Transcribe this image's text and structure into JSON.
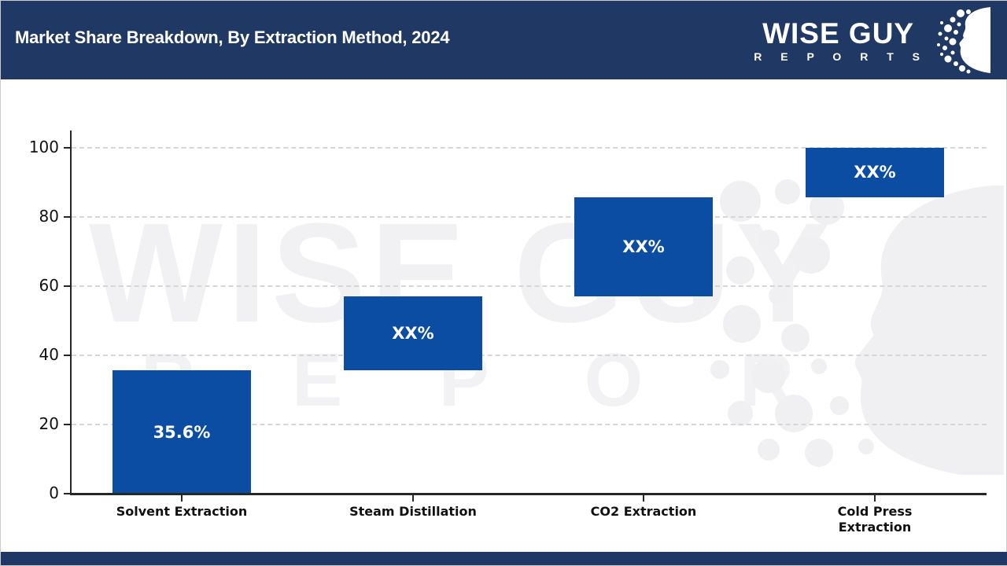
{
  "colors": {
    "header_bg": "#203864",
    "footer_bg": "#203864",
    "bar": "#0b4da2",
    "grid": "#d6d6d6",
    "axis": "#262626",
    "watermark": "#f1f1f3"
  },
  "header": {
    "title": "Market Share Breakdown, By Extraction Method, 2024",
    "logo_line1": "WISE GUY",
    "logo_line2": "R E P O R T S"
  },
  "watermark": {
    "line1": "WISE GUY",
    "line2": "R E P O R T S"
  },
  "chart_data": {
    "type": "bar",
    "variant": "waterfall",
    "title": "Market Share Breakdown, By Extraction Method, 2024",
    "xlabel": "",
    "ylabel": "",
    "ylim": [
      0,
      105
    ],
    "grid": "dashed-horizontal",
    "legend": "none",
    "bar_color": "#0b4da2",
    "yticks": [
      0,
      20,
      40,
      60,
      80,
      100
    ],
    "categories": [
      "Solvent Extraction",
      "Steam Distillation",
      "CO2 Extraction",
      "Cold Press\nExtraction"
    ],
    "segments": [
      {
        "category": "Solvent Extraction",
        "start": 0,
        "end": 35.6,
        "label": "35.6%"
      },
      {
        "category": "Steam Distillation",
        "start": 35.6,
        "end": 57,
        "label": "XX%"
      },
      {
        "category": "CO2 Extraction",
        "start": 57,
        "end": 85.7,
        "label": "XX%"
      },
      {
        "category": "Cold Press Extraction",
        "start": 85.7,
        "end": 100,
        "label": "XX%"
      }
    ]
  }
}
